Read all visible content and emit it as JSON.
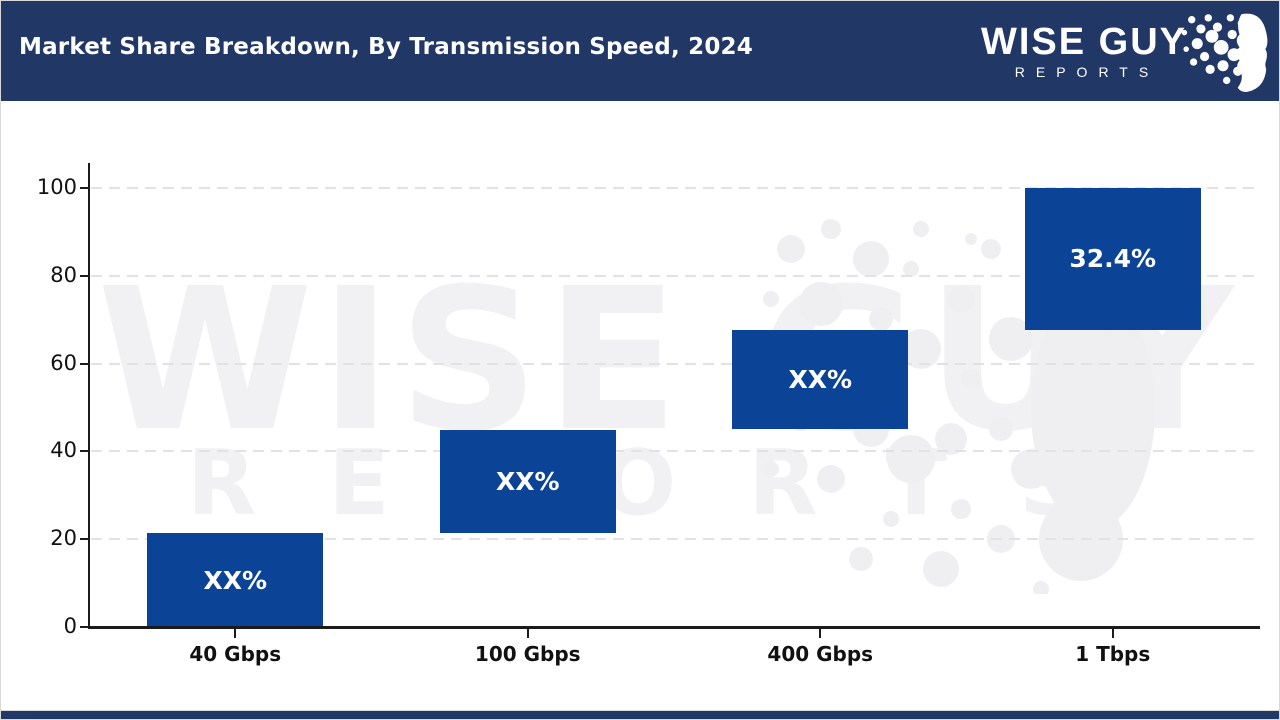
{
  "header": {
    "title": "Market Share Breakdown, By Transmission Speed, 2024",
    "logo_line1": "WISE GUY",
    "logo_line2": "REPORTS"
  },
  "watermark": {
    "line1": "WISE GUY",
    "line2": "REPORTS"
  },
  "colors": {
    "header_bg": "#213766",
    "bar": "#0B4397",
    "axis": "#1B1B1B",
    "grid": "#E2E2E2",
    "watermark": "#F1F1F3",
    "bar_label_text": "#FFFFFF",
    "tick_text": "#111111"
  },
  "chart_data": {
    "type": "bar",
    "subtype": "floating-segment (waterfall-style cumulative market share)",
    "title": "Market Share Breakdown, By Transmission Speed, 2024",
    "categories": [
      "40 Gbps",
      "100 Gbps",
      "400 Gbps",
      "1 Tbps"
    ],
    "segments": [
      {
        "category": "40 Gbps",
        "from": 0,
        "to": 21.4,
        "label": "XX%"
      },
      {
        "category": "100 Gbps",
        "from": 21.4,
        "to": 44.9,
        "label": "XX%"
      },
      {
        "category": "400 Gbps",
        "from": 45.1,
        "to": 67.7,
        "label": "XX%"
      },
      {
        "category": "1 Tbps",
        "from": 67.7,
        "to": 100,
        "label": "32.4%"
      }
    ],
    "xlabel": "",
    "ylabel": "",
    "ylim": [
      0,
      100
    ],
    "yticks": [
      0,
      20,
      40,
      60,
      80,
      100
    ],
    "grid": "horizontal dashed",
    "legend": "none",
    "bar_color": "#0B4397"
  }
}
